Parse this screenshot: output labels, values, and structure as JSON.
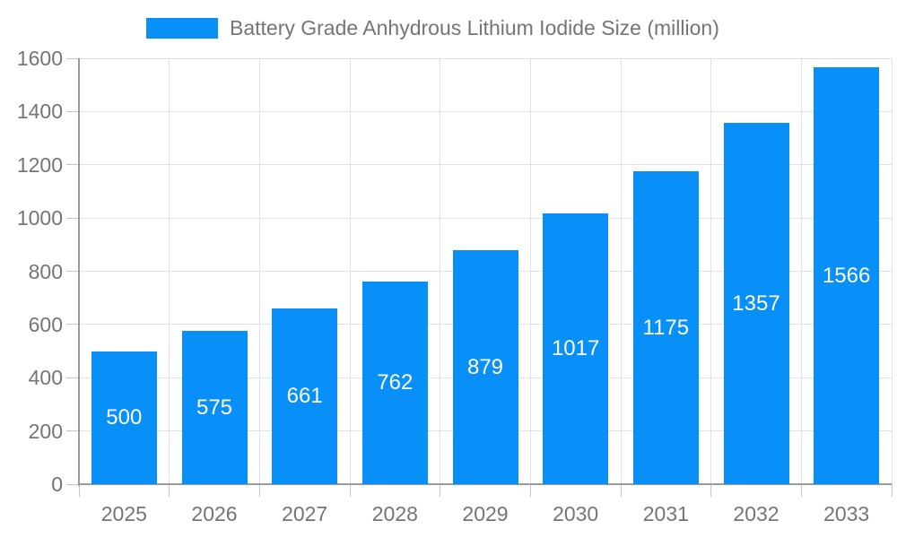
{
  "legend": {
    "label": "Battery Grade Anhydrous Lithium Iodide Size (million)"
  },
  "chart_data": {
    "type": "bar",
    "title": "",
    "xlabel": "",
    "ylabel": "",
    "categories": [
      "2025",
      "2026",
      "2027",
      "2028",
      "2029",
      "2030",
      "2031",
      "2032",
      "2033"
    ],
    "values": [
      500,
      575,
      661,
      762,
      879,
      1017,
      1175,
      1357,
      1566
    ],
    "series_name": "Battery Grade Anhydrous Lithium Iodide Size (million)",
    "value_labels": [
      "500",
      "575",
      "661",
      "762",
      "879",
      "1017",
      "1175",
      "1357",
      "1566"
    ],
    "ylim": [
      0,
      1600
    ],
    "yticks": [
      0,
      200,
      400,
      600,
      800,
      1000,
      1200,
      1400,
      1600
    ],
    "grid": true,
    "legend_position": "top",
    "colors": {
      "bar": "#0990f8",
      "value_text": "#ffffff",
      "axis_text": "#757575",
      "gridline": "#e2e2e2",
      "axis_line": "#9a9a9a",
      "tick": "#c6c6c6",
      "background": "#ffffff"
    }
  }
}
